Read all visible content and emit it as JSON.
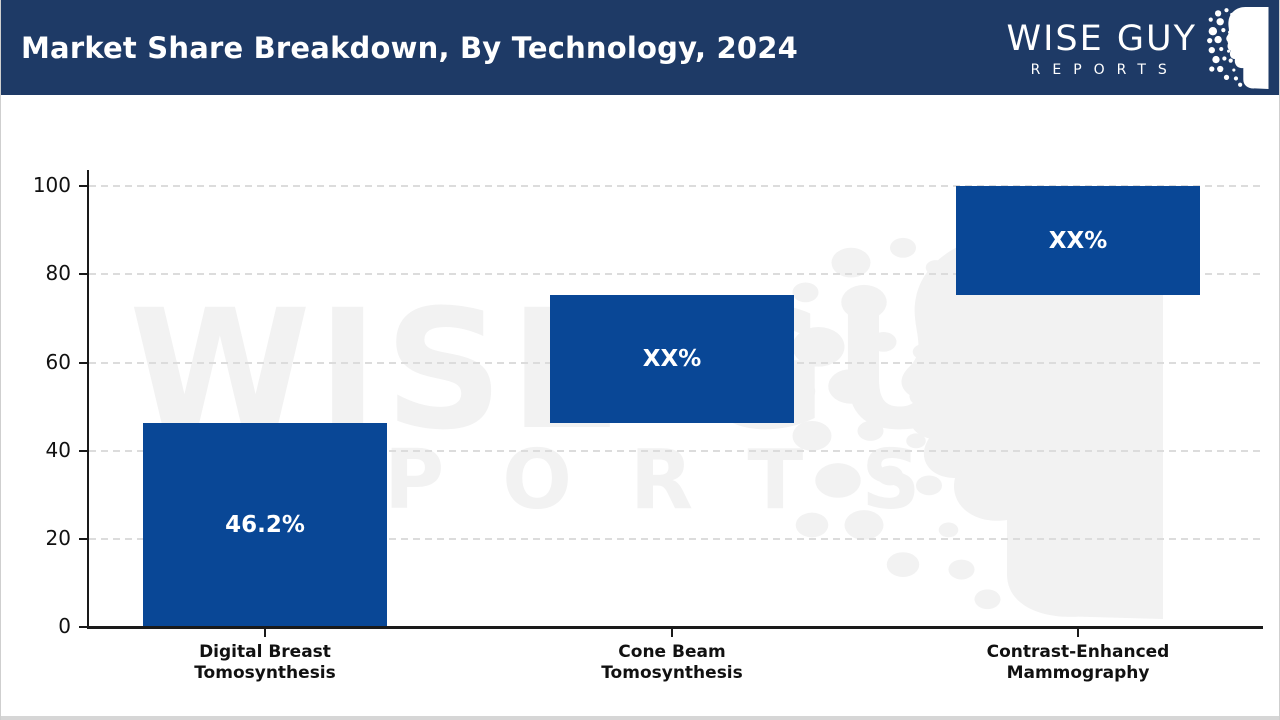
{
  "header": {
    "title": "Market Share Breakdown, By Technology, 2024",
    "bg_color": "#1e3a66",
    "logo": {
      "line1": "WISE GUY",
      "line2": "REPORTS"
    }
  },
  "watermark": {
    "line1": "WISE GUY",
    "line2": "REPORTS"
  },
  "chart_data": {
    "type": "bar",
    "subtype": "floating-segment-waterfall",
    "title": "Market Share Breakdown, By Technology, 2024",
    "categories": [
      "Digital Breast\nTomosynthesis",
      "Cone Beam\nTomosynthesis",
      "Contrast-Enhanced\nMammography"
    ],
    "bars": [
      {
        "category": "Digital Breast Tomosynthesis",
        "start": 0,
        "end": 46.2,
        "label": "46.2%"
      },
      {
        "category": "Cone Beam Tomosynthesis",
        "start": 46.2,
        "end": 75.3,
        "label": "XX%"
      },
      {
        "category": "Contrast-Enhanced Mammography",
        "start": 75.3,
        "end": 100,
        "label": "XX%"
      }
    ],
    "yticks": [
      0,
      20,
      40,
      60,
      80,
      100
    ],
    "ylim": [
      0,
      103.7
    ],
    "xlabel": "",
    "ylabel": "",
    "grid": "horizontal-dashed",
    "legend": "none",
    "bar_color": "#094796",
    "bar_label_color": "#ffffff",
    "axis_color": "#1a1a1a",
    "gridline_color": "#dcdcdc",
    "tick_label_color": "#111111"
  }
}
